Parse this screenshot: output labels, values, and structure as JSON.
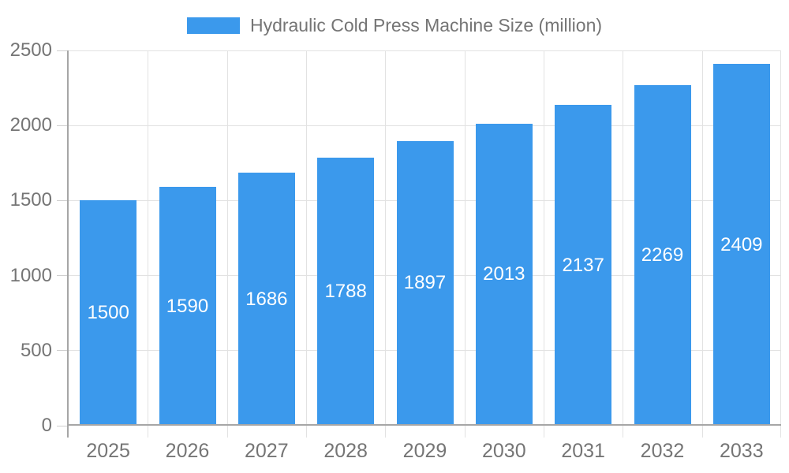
{
  "legend": {
    "label": "Hydraulic Cold Press Machine Size (million)"
  },
  "chart_data": {
    "type": "bar",
    "title": "Hydraulic Cold Press Machine Size (million)",
    "categories": [
      "2025",
      "2026",
      "2027",
      "2028",
      "2029",
      "2030",
      "2031",
      "2032",
      "2033"
    ],
    "values": [
      1500,
      1590,
      1686,
      1788,
      1897,
      2013,
      2137,
      2269,
      2409
    ],
    "xlabel": "",
    "ylabel": "",
    "ylim": [
      0,
      2500
    ],
    "yticks": [
      0,
      500,
      1000,
      1500,
      2000,
      2500
    ],
    "grid": true,
    "legend_position": "top-center",
    "value_labels": "inside-center",
    "colors": {
      "bar": "#3b99ec",
      "value_label": "#ffffff",
      "axis_text": "#757575",
      "gridline": "#e2e2e2",
      "axis_line": "#a6a6a6"
    }
  }
}
